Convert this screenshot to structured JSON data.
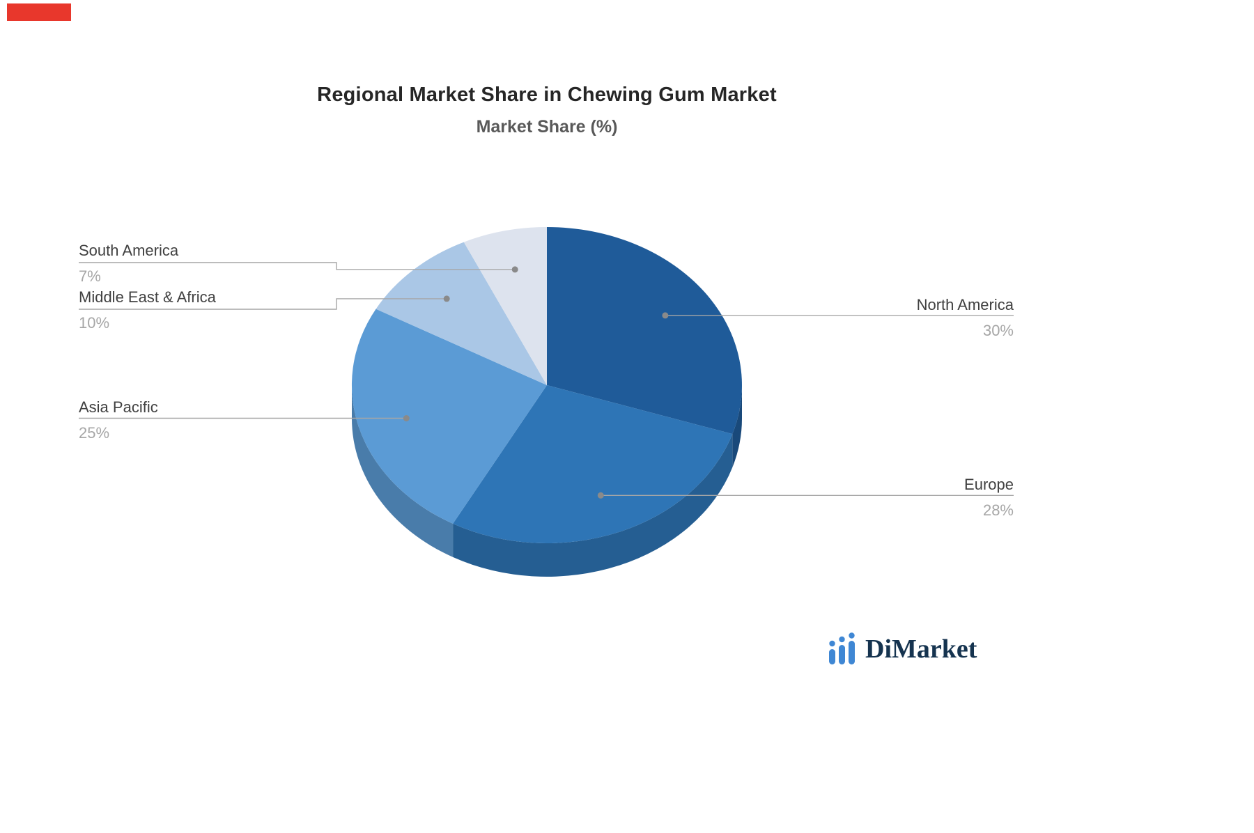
{
  "header": {
    "title": "Regional Market Share in Chewing Gum Market",
    "subtitle": "Market Share (%)"
  },
  "chart_data": {
    "type": "pie",
    "style": "3d",
    "title": "Regional Market Share in Chewing Gum Market",
    "subtitle": "Market Share (%)",
    "unit": "%",
    "start_angle_deg": 0,
    "direction": "clockwise",
    "legend": "callout-labels",
    "slices": [
      {
        "label": "North America",
        "value": 30,
        "value_text": "30%",
        "color": "#1f5b99",
        "side": "right"
      },
      {
        "label": "Europe",
        "value": 28,
        "value_text": "28%",
        "color": "#2e75b6",
        "side": "right"
      },
      {
        "label": "Asia Pacific",
        "value": 25,
        "value_text": "25%",
        "color": "#5b9bd5",
        "side": "left"
      },
      {
        "label": "Middle East & Africa",
        "value": 10,
        "value_text": "10%",
        "color": "#aac7e6",
        "side": "left"
      },
      {
        "label": "South America",
        "value": 7,
        "value_text": "7%",
        "color": "#dde3ee",
        "side": "left"
      }
    ],
    "label_color": "#404040",
    "value_color": "#a6a6a6",
    "leader_line_color": "#a6a6a6",
    "leader_dot_color": "#8a8a8a",
    "title_color": "#262626",
    "subtitle_color": "#595959"
  },
  "branding": {
    "logo_text": "DiMarket",
    "logo_text_color": "#15334f",
    "icon": "bar-chart-icon",
    "icon_color": "#3f87d4"
  },
  "decorations": {
    "top_left_marker_color": "#e8372c"
  }
}
